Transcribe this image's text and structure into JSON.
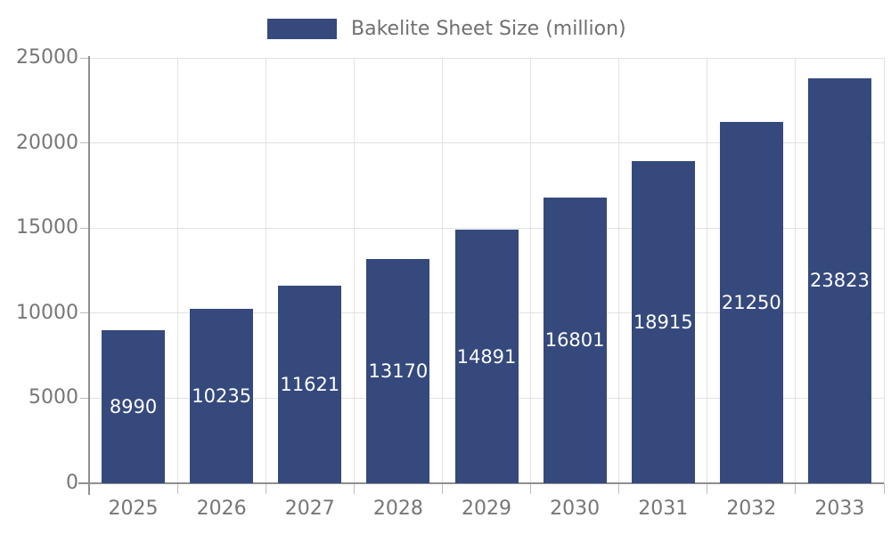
{
  "legend": {
    "label": "Bakelite Sheet Size (million)"
  },
  "chart_data": {
    "type": "bar",
    "title": "Bakelite Sheet Size (million)",
    "categories": [
      "2025",
      "2026",
      "2027",
      "2028",
      "2029",
      "2030",
      "2031",
      "2032",
      "2033"
    ],
    "series": [
      {
        "name": "Bakelite Sheet Size (million)",
        "values": [
          8990,
          10235,
          11621,
          13170,
          14891,
          16801,
          18915,
          21250,
          23823
        ]
      }
    ],
    "value_labels": [
      "8990",
      "10235",
      "11621",
      "13170",
      "14891",
      "16801",
      "18915",
      "21250",
      "23823"
    ],
    "xlabel": "",
    "ylabel": "",
    "ylim": [
      0,
      25000
    ],
    "yticks": [
      0,
      5000,
      10000,
      15000,
      20000,
      25000
    ],
    "ytick_labels": [
      "0",
      "5000",
      "10000",
      "15000",
      "20000",
      "25000"
    ],
    "grid": true,
    "legend_position": "top",
    "colors": {
      "bar": "#35497d",
      "value_label": "#ffffff",
      "grid": "#e2e2e2",
      "axis": "#8f8f8f",
      "tick_mark": "#bdbdbd",
      "tick_label": "#767676",
      "legend_text": "#6f6f6f",
      "background": "#ffffff"
    }
  }
}
